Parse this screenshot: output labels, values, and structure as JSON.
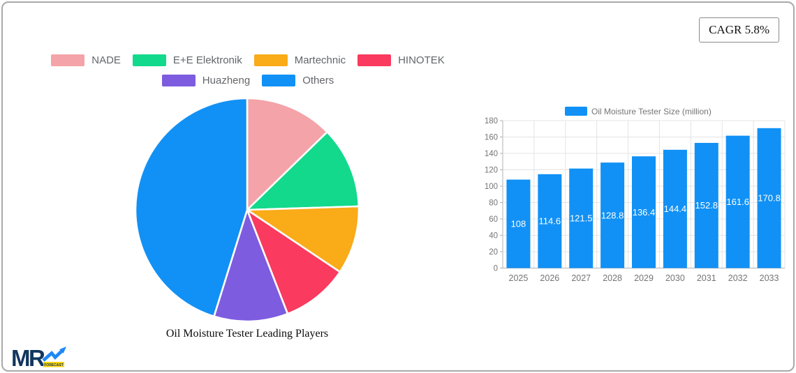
{
  "badge": {
    "label": "CAGR 5.8%"
  },
  "logo": {
    "brand": "MR",
    "badge": "FORECAST"
  },
  "colors": {
    "accent_blue": "#1191f5",
    "card_border": "#a9a9a9",
    "grid_line": "#e4e4e4",
    "axis_line": "#b0b0b0",
    "tick_text": "#757575",
    "legend_text": "#63666a",
    "logo_navy": "#12365e",
    "logo_arrow_blue": "#1e88f7",
    "logo_yellow": "#ffd60a"
  },
  "chart_data": [
    {
      "type": "pie",
      "title": "Oil Moisture Tester Leading Players",
      "labels": [
        "NADE",
        "E+E Elektronik",
        "Martechnic",
        "HINOTEK",
        "Huazheng",
        "Others"
      ],
      "values": [
        12.7,
        11.8,
        9.9,
        9.7,
        10.7,
        45.2
      ],
      "colors": [
        "#f4a3a8",
        "#12d98c",
        "#f9ab18",
        "#fa3a5e",
        "#7d5ce0",
        "#1191f5"
      ],
      "start_angle_deg": 0,
      "direction": "clockwise",
      "legend_position": "top"
    },
    {
      "type": "bar",
      "legend": "Oil Moisture Tester Size (million)",
      "categories": [
        "2025",
        "2026",
        "2027",
        "2028",
        "2029",
        "2030",
        "2031",
        "2032",
        "2033"
      ],
      "values": [
        108,
        114.6,
        121.5,
        128.8,
        136.4,
        144.4,
        152.8,
        161.6,
        170.8
      ],
      "value_labels": [
        "108",
        "114.6",
        "121.5",
        "128.8",
        "136.4",
        "144.4",
        "152.8",
        "161.6",
        "170.8"
      ],
      "ylim": [
        0,
        180
      ],
      "ytick_step": 20,
      "grid": true,
      "bar_color": "#1191f5",
      "value_label_color": "#ffffff",
      "legend_position": "top"
    }
  ]
}
